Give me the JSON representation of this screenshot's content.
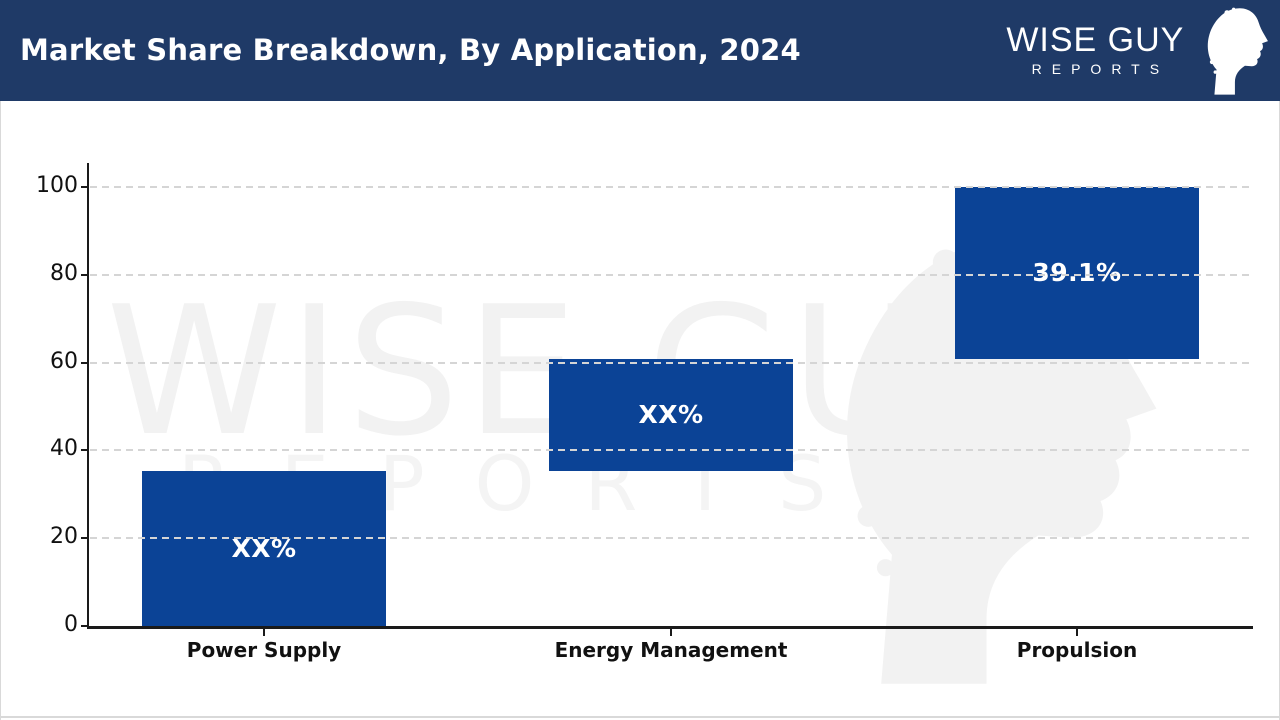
{
  "header": {
    "title": "Market Share Breakdown, By Application, 2024",
    "bg_color": "#1f3a67",
    "logo": {
      "line1": "WISE GUY",
      "line2": "REPORTS"
    }
  },
  "watermark": {
    "line1": "WISE GUY",
    "line2": "REPORTS"
  },
  "chart_data": {
    "type": "bar",
    "variant": "stacked-waterfall-segments",
    "title": "Market Share Breakdown, By Application, 2024",
    "categories": [
      "Power Supply",
      "Energy Management",
      "Propulsion"
    ],
    "segments": [
      {
        "category": "Power Supply",
        "start": 0,
        "end": 35.4,
        "label": "XX%"
      },
      {
        "category": "Energy Management",
        "start": 35.4,
        "end": 60.9,
        "label": "XX%"
      },
      {
        "category": "Propulsion",
        "start": 60.9,
        "end": 100,
        "label": "39.1%"
      }
    ],
    "xlabel": "",
    "ylabel": "",
    "ylim": [
      0,
      100
    ],
    "yticks": [
      0,
      20,
      40,
      60,
      80,
      100
    ],
    "grid": "horizontal dashed, drawn above bars",
    "legend": "none",
    "bar_color": "#0b4396",
    "bar_label_color": "#ffffff",
    "axis_color": "#1a1a1a",
    "gridline_color": "#d5d5d5"
  }
}
